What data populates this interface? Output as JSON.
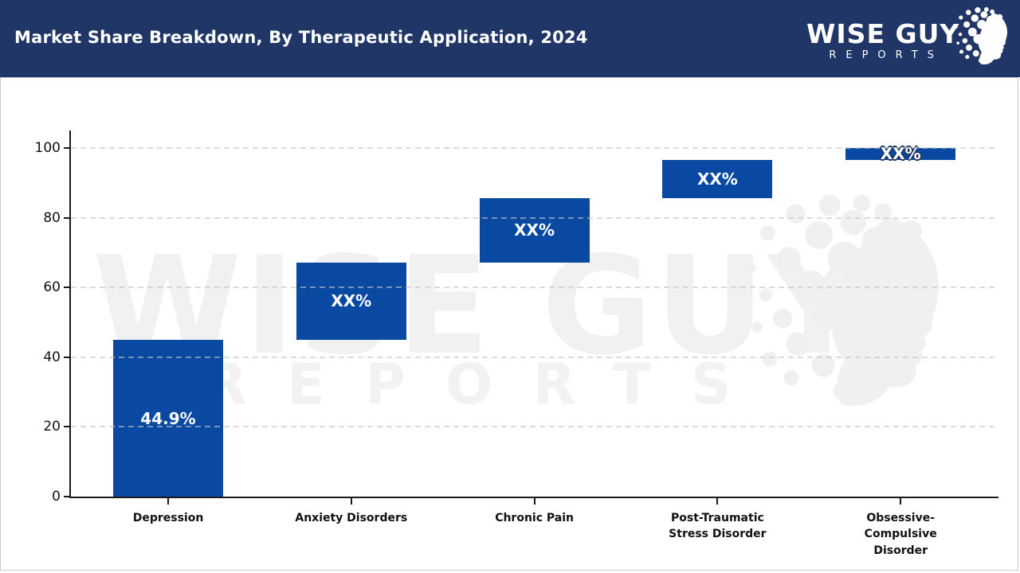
{
  "header": {
    "title": "Market Share Breakdown, By Therapeutic Application, 2024",
    "background_color": "#203666",
    "logo": {
      "wordmark": "WISE GUY",
      "subtitle": "REPORTS"
    }
  },
  "watermark": {
    "wordmark": "WISE GUY",
    "subtitle": "REPORTS"
  },
  "chart_data": {
    "type": "bar",
    "subtype": "waterfall",
    "title": "Market Share Breakdown, By Therapeutic Application, 2024",
    "categories": [
      "Depression",
      "Anxiety Disorders",
      "Chronic Pain",
      "Post-Traumatic\nStress Disorder",
      "Obsessive-\nCompulsive\nDisorder"
    ],
    "segments": [
      {
        "category": "Depression",
        "start": 0,
        "end": 44.9,
        "value_label": "44.9%"
      },
      {
        "category": "Anxiety Disorders",
        "start": 44.9,
        "end": 67.2,
        "value_label": "XX%"
      },
      {
        "category": "Chronic Pain",
        "start": 67.2,
        "end": 85.6,
        "value_label": "XX%"
      },
      {
        "category": "Post-Traumatic Stress Disorder",
        "start": 85.6,
        "end": 96.6,
        "value_label": "XX%"
      },
      {
        "category": "Obsessive-Compulsive Disorder",
        "start": 96.6,
        "end": 100,
        "value_label": "XX%"
      }
    ],
    "yticks": [
      0,
      20,
      40,
      60,
      80,
      100
    ],
    "ylim": [
      0,
      105
    ],
    "xlabel": "",
    "ylabel": "",
    "bar_color": "#0a49a1",
    "bar_label_color": "#ffffff",
    "grid": "horizontal dashed, drawn over bars",
    "legend": "none"
  }
}
